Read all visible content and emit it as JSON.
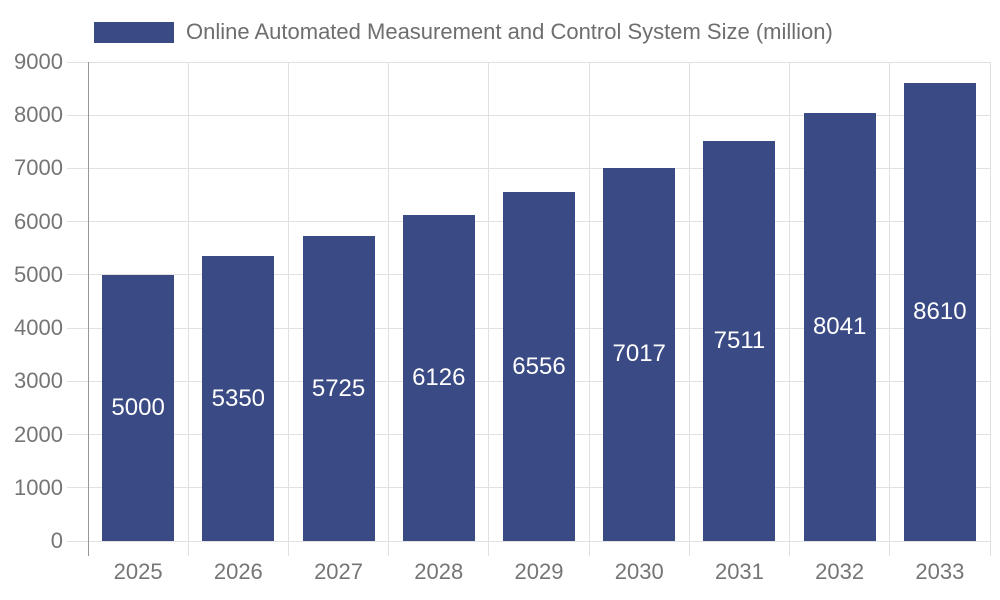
{
  "chart_data": {
    "type": "bar",
    "title": "Online Automated Measurement and Control System Size (million)",
    "categories": [
      "2025",
      "2026",
      "2027",
      "2028",
      "2029",
      "2030",
      "2031",
      "2032",
      "2033"
    ],
    "series": [
      {
        "name": "Online Automated Measurement and Control System Size (million)",
        "values": [
          5000,
          5350,
          5725,
          6126,
          6556,
          7017,
          7511,
          8041,
          8610
        ]
      }
    ],
    "xlabel": "",
    "ylabel": "",
    "ylim": [
      0,
      9000
    ],
    "ytick_interval": 1000,
    "ytick_labels": [
      "0",
      "1000",
      "2000",
      "3000",
      "4000",
      "5000",
      "6000",
      "7000",
      "8000",
      "9000"
    ],
    "grid": true,
    "legend_position": "top-left",
    "bar_value_labels": true
  },
  "colors": {
    "bar": "#3A4A85",
    "bar_label": "#FFFFFF",
    "axis_text": "#757575",
    "legend_text": "#6E6E6E",
    "grid": "#E1E1E1",
    "axis_line": "#969696",
    "background": "#FFFFFF"
  }
}
